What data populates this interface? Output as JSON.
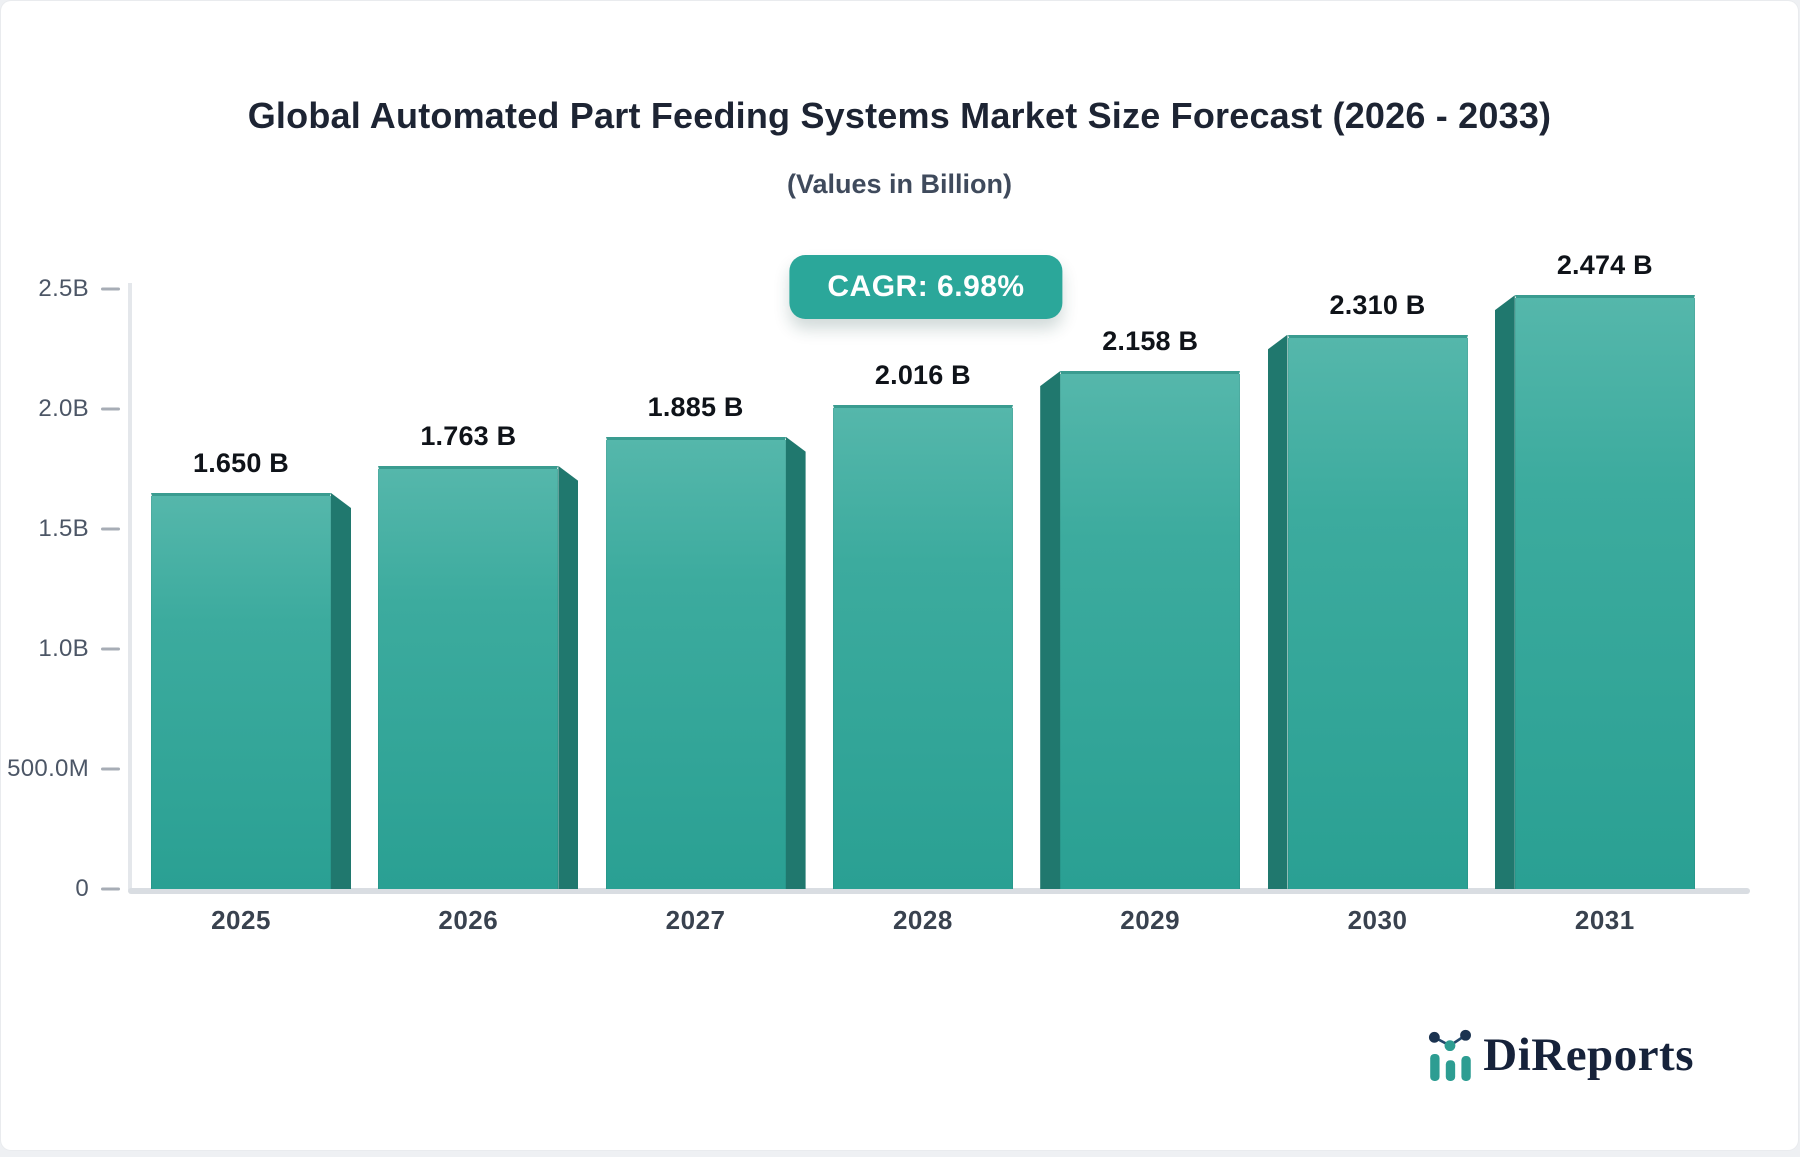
{
  "page": {
    "title": "Global Automated Part Feeding Systems Market Size Forecast (2026 - 2033)",
    "subtitle": "(Values in Billion)",
    "cagr_badge_label": "CAGR: 6.98%",
    "brand_name": "DiReports"
  },
  "colors": {
    "accent_teal": "#2ba79a",
    "bar_gradient_top": "#55b7ab",
    "bar_gradient_bottom": "#2aa093",
    "bar_side_dark": "#20786e",
    "axis_line": "#d9dde2",
    "tick_text": "#4c5666",
    "title_text": "#1d2433",
    "logo_navy": "#16223a"
  },
  "chart_data": {
    "type": "bar",
    "title": "Global Automated Part Feeding Systems Market Size Forecast (2026 - 2033)",
    "subtitle": "(Values in Billion)",
    "annotation": "CAGR: 6.98%",
    "xlabel": "",
    "ylabel": "",
    "unit": "Billion",
    "categories": [
      "2025",
      "2026",
      "2027",
      "2028",
      "2029",
      "2030",
      "2031"
    ],
    "values": [
      1.65,
      1.763,
      1.885,
      2.016,
      2.158,
      2.31,
      2.474
    ],
    "bar_labels": [
      "1.650 B",
      "1.763 B",
      "1.885 B",
      "2.016 B",
      "2.158 B",
      "2.310 B",
      "2.474 B"
    ],
    "ylim": [
      0,
      2.5
    ],
    "y_ticks": [
      {
        "label": "2.5B",
        "value": 2.5
      },
      {
        "label": "2.0B",
        "value": 2.0
      },
      {
        "label": "1.5B",
        "value": 1.5
      },
      {
        "label": "1.0B",
        "value": 1.0
      },
      {
        "label": "500.0M",
        "value": 0.5
      },
      {
        "label": "0",
        "value": 0
      }
    ],
    "grid": false,
    "legend": "none",
    "style": "pseudo-3d-bars"
  }
}
